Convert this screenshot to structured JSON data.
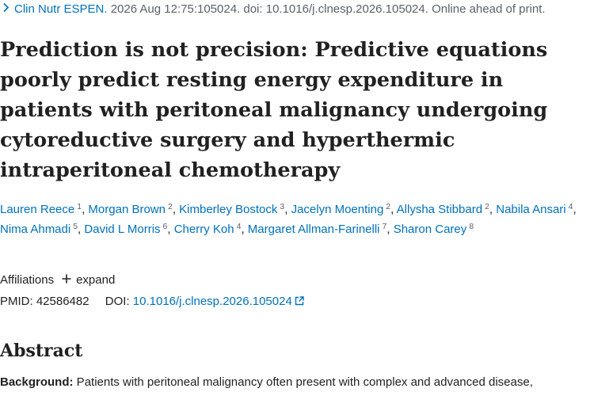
{
  "citation": {
    "chevron_icon": "chevron-right-icon",
    "journal": "Clin Nutr ESPEN.",
    "details": " 2026 Aug 12:75:105024. doi: 10.1016/j.clnesp.2026.105024. Online ahead of print."
  },
  "article": {
    "title": "Prediction is not precision: Predictive equations poorly predict resting energy expenditure in patients with peritoneal malignancy undergoing cytoreductive surgery and hyperthermic intraperitoneal chemotherapy"
  },
  "authors": [
    {
      "name": "Lauren Reece",
      "sup": "1"
    },
    {
      "name": "Morgan Brown",
      "sup": "2"
    },
    {
      "name": "Kimberley Bostock",
      "sup": "3"
    },
    {
      "name": "Jacelyn Moenting",
      "sup": "2"
    },
    {
      "name": "Allysha Stibbard",
      "sup": "2"
    },
    {
      "name": "Nabila Ansari",
      "sup": "4"
    },
    {
      "name": "Nima Ahmadi",
      "sup": "5"
    },
    {
      "name": "David L Morris",
      "sup": "6"
    },
    {
      "name": "Cherry Koh",
      "sup": "4"
    },
    {
      "name": "Margaret Allman-Farinelli",
      "sup": "7"
    },
    {
      "name": "Sharon Carey",
      "sup": "8"
    }
  ],
  "affiliations": {
    "label": "Affiliations",
    "plus_icon": "plus-icon",
    "expand_label": "expand"
  },
  "ids": {
    "pmid_label": "PMID:",
    "pmid_value": "42586482",
    "doi_label": "DOI:",
    "doi_value": "10.1016/j.clnesp.2026.105024",
    "external_icon": "external-link-icon"
  },
  "abstract": {
    "heading": "Abstract",
    "background_label": "Background:",
    "background_text": " Patients with peritoneal malignancy often present with complex and advanced disease,"
  },
  "colors": {
    "link": "#0071bc",
    "text": "#212121",
    "muted": "#5b616b"
  }
}
